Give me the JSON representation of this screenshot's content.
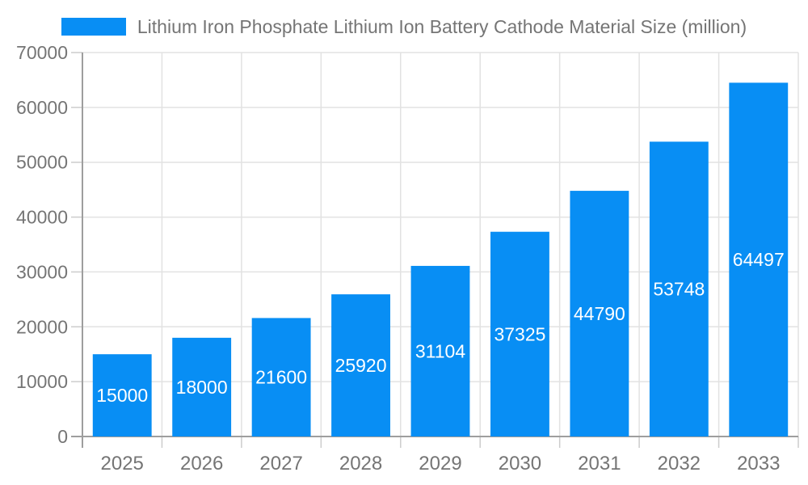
{
  "colors": {
    "bar": "#088ef4",
    "axis_line": "#9e9e9e",
    "tick_line": "#cccccc",
    "grid_line": "#e2e2e2",
    "text": "#757575",
    "bar_label": "#ffffff",
    "background": "#ffffff"
  },
  "legend": {
    "label": "Lithium Iron Phosphate Lithium Ion Battery Cathode Material Size (million)"
  },
  "chart_data": {
    "type": "bar",
    "title": "Lithium Iron Phosphate Lithium Ion Battery Cathode Material Size (million)",
    "categories": [
      "2025",
      "2026",
      "2027",
      "2028",
      "2029",
      "2030",
      "2031",
      "2032",
      "2033"
    ],
    "values": [
      15000,
      18000,
      21600,
      25920,
      31104,
      37325,
      44790,
      53748,
      64497
    ],
    "value_labels": [
      "15000",
      "18000",
      "21600",
      "25920",
      "31104",
      "37325",
      "44790",
      "53748",
      "64497"
    ],
    "series": [
      {
        "name": "Lithium Iron Phosphate Lithium Ion Battery Cathode Material Size (million)",
        "values": [
          15000,
          18000,
          21600,
          25920,
          31104,
          37325,
          44790,
          53748,
          64497
        ]
      }
    ],
    "xlabel": "",
    "ylabel": "",
    "ylim": [
      0,
      70000
    ],
    "y_ticks": [
      0,
      10000,
      20000,
      30000,
      40000,
      50000,
      60000,
      70000
    ],
    "y_tick_labels": [
      "0",
      "10000",
      "20000",
      "30000",
      "40000",
      "50000",
      "60000",
      "70000"
    ],
    "grid": true,
    "legend_position": "top",
    "bar_label_position": "center"
  }
}
